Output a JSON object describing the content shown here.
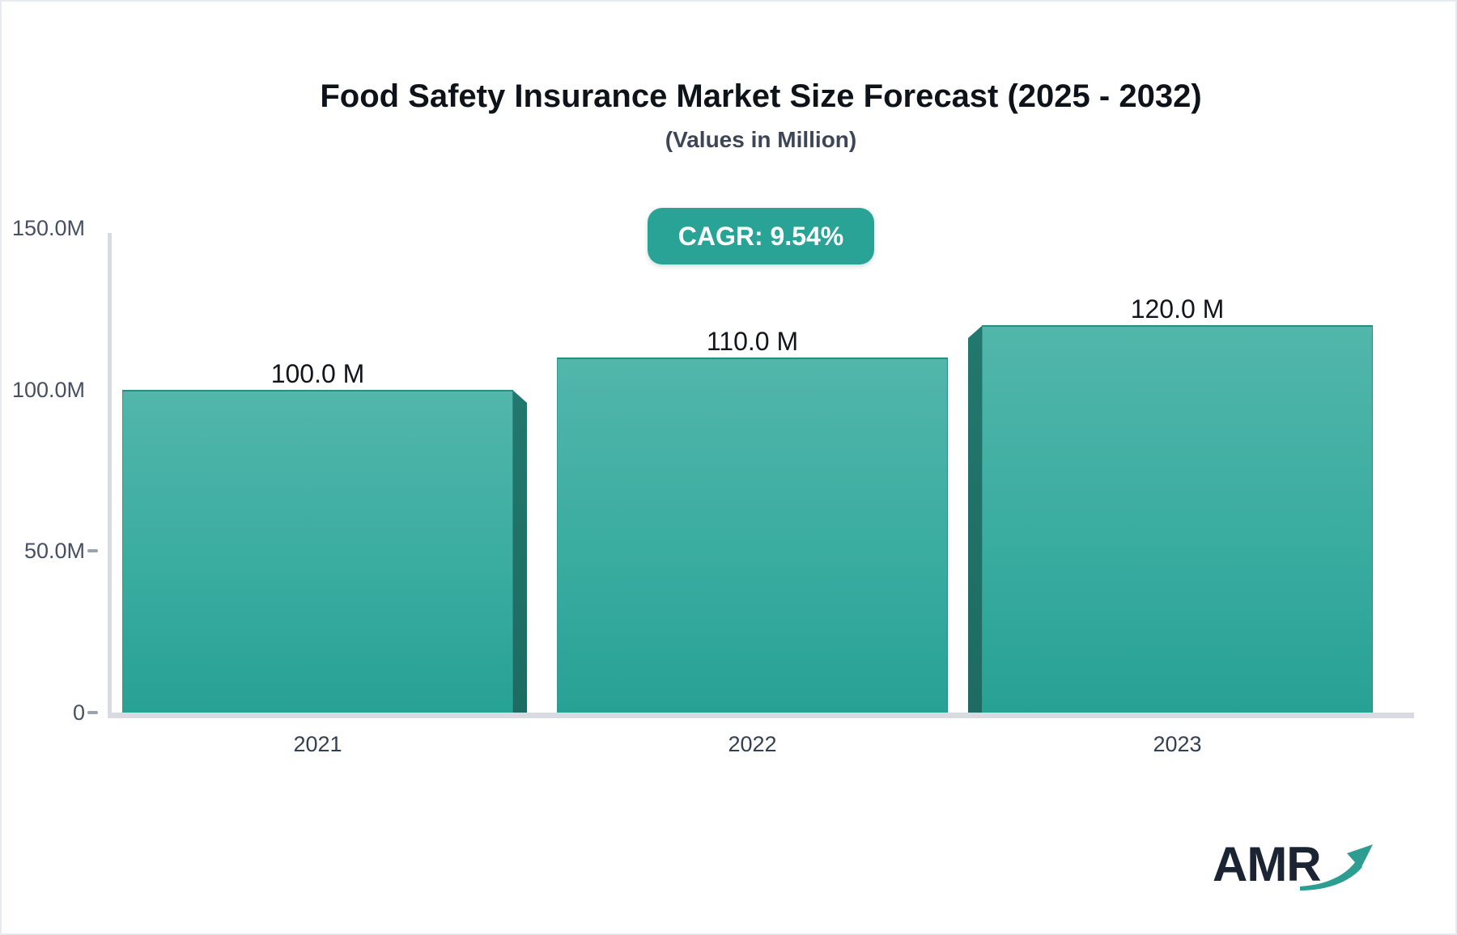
{
  "header": {
    "title": "Food Safety Insurance Market Size Forecast (2025 - 2032)",
    "subtitle": "(Values in Million)"
  },
  "badge": {
    "label": "CAGR: 9.54%"
  },
  "chart_data": {
    "type": "bar",
    "title": "Food Safety Insurance Market Size Forecast (2025 - 2032)",
    "subtitle": "(Values in Million)",
    "unit": "Million",
    "cagr_percent": "9.54%",
    "categories": [
      "2021",
      "2022",
      "2023"
    ],
    "values": [
      100.0,
      110.0,
      120.0
    ],
    "bar_labels": [
      "100.0 M",
      "110.0 M",
      "120.0 M"
    ],
    "xlabel": "",
    "ylabel": "",
    "ylim": [
      0,
      150
    ],
    "grid": false,
    "legend": false,
    "y_ticks": [
      {
        "label": "150.0M",
        "value": 150,
        "tick_mark": false
      },
      {
        "label": "100.0M",
        "value": 100,
        "tick_mark": false
      },
      {
        "label": "50.0M",
        "value": 50,
        "tick_mark": true
      },
      {
        "label": "0",
        "value": 0,
        "tick_mark": true
      }
    ]
  },
  "logo": {
    "text": "AMR",
    "icon": "trend-arrow-icon"
  },
  "colors": {
    "accent_teal": "#2aa397",
    "bar_gradient_top": "#52b6ab",
    "bar_gradient_bottom": "#28a195",
    "bar_side_shadow": "#1f6f66",
    "axis_line": "#d8dce2",
    "tick_text": "#475063",
    "value_label_text": "#12161c",
    "title_text": "#0e1319",
    "logo_navy": "#1a2433"
  }
}
